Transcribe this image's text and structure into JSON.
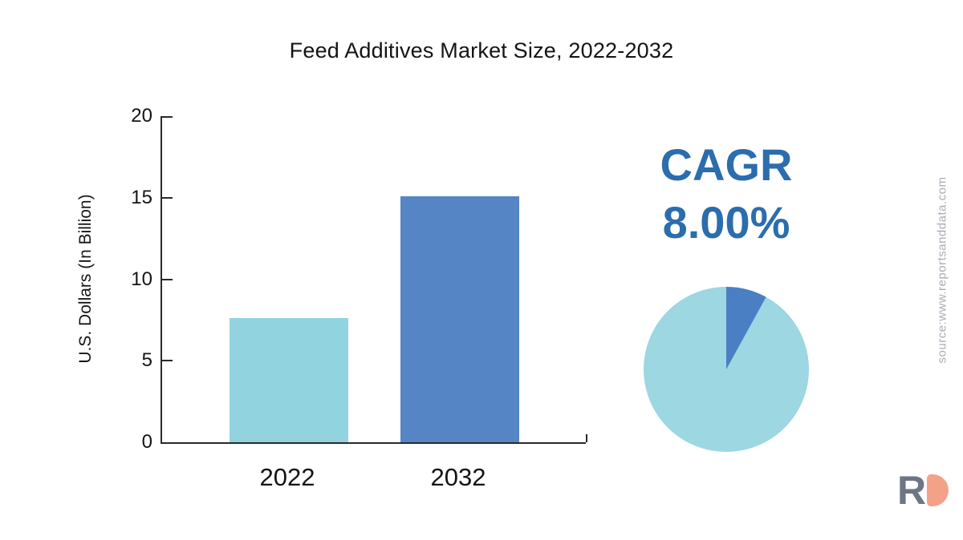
{
  "title": "Feed Additives Market Size, 2022-2032",
  "cagr": {
    "label": "CAGR",
    "value": "8.00%"
  },
  "source": "source:www.reportsanddata.com",
  "logo": {
    "letter": "R",
    "r_color": "#6e7585",
    "d_color": "#f3a287"
  },
  "colors": {
    "accent_blue": "#2b6dad",
    "bar_2022": "#92d3e0",
    "bar_2032": "#5585c5",
    "pie_light": "#9cd7e2",
    "pie_dark": "#4b7fc4",
    "axis": "#2a2a2a",
    "source_gray": "#a8adb5"
  },
  "chart_data": [
    {
      "type": "bar",
      "title": "Feed Additives Market Size, 2022-2032",
      "categories": [
        "2022",
        "2032"
      ],
      "values": [
        7.6,
        15.1
      ],
      "bar_colors": [
        "#92d3e0",
        "#5585c5"
      ],
      "xlabel": "",
      "ylabel": "U.S. Dollars (In Billion)",
      "ylim": [
        0,
        20
      ],
      "yticks": [
        0,
        5,
        10,
        15,
        20
      ],
      "grid": false,
      "legend": "none"
    },
    {
      "type": "pie",
      "title": "CAGR 8.00%",
      "labels": [
        "CAGR",
        "remainder"
      ],
      "values": [
        8,
        92
      ],
      "colors": [
        "#4b7fc4",
        "#9cd7e2"
      ],
      "start_angle_deg": 0,
      "direction": "clockwise",
      "legend": "none"
    }
  ]
}
